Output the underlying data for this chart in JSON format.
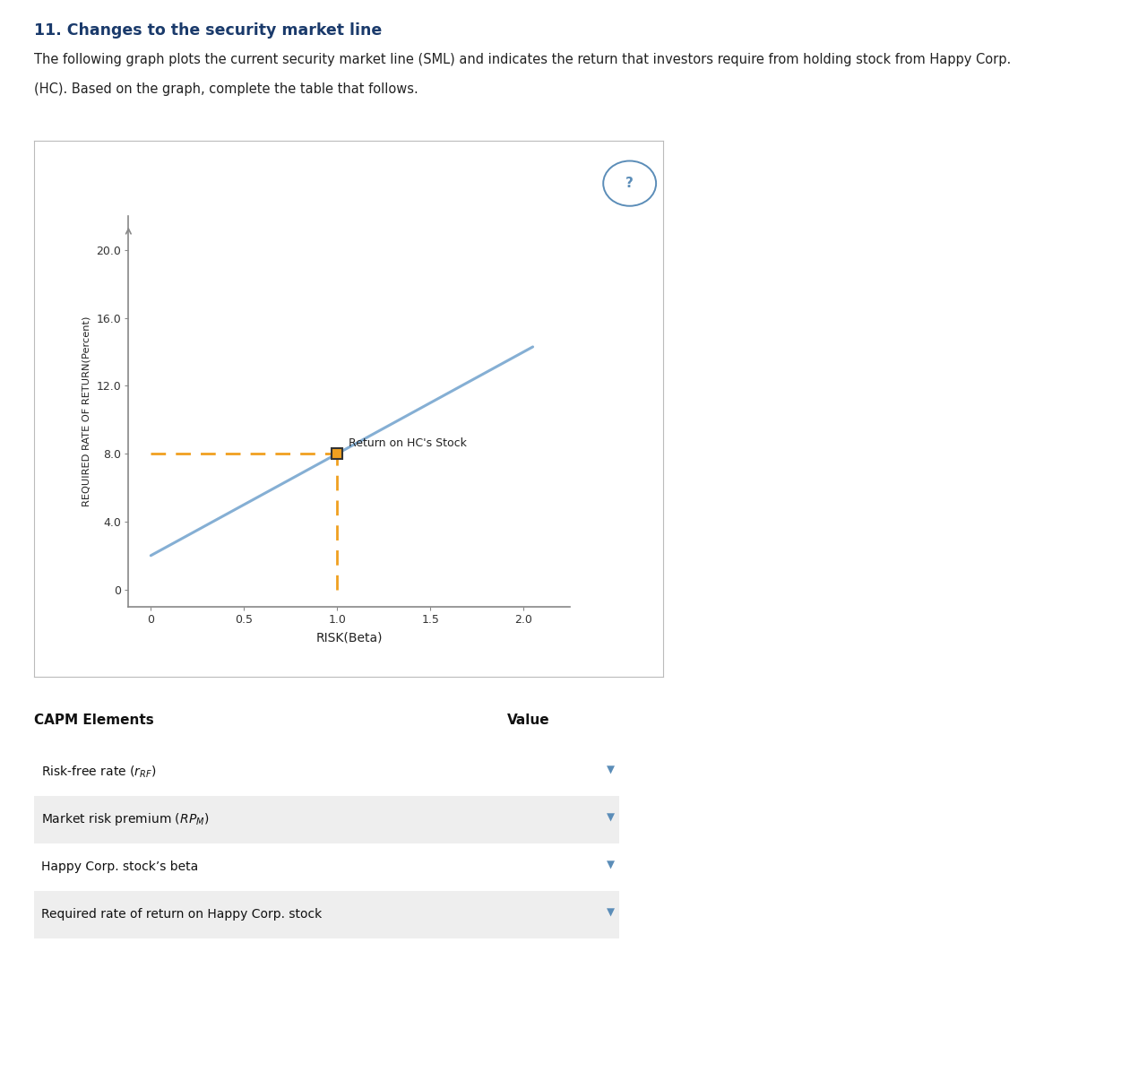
{
  "title": "11. Changes to the security market line",
  "title_color": "#1a3a6b",
  "description_line1": "The following graph plots the current security market line (SML) and indicates the return that investors require from holding stock from Happy Corp.",
  "description_line2": "(HC). Based on the graph, complete the table that follows.",
  "page_bg": "#ffffff",
  "border_color_gold": "#c9b96a",
  "chart_bg": "#ffffff",
  "chart_outer_bg": "#f8f8f8",
  "chart_border_color": "#bbbbbb",
  "sml_color": "#85afd4",
  "sml_y_intercept": 2.0,
  "sml_slope": 6.0,
  "sml_x_end": 2.05,
  "dashed_color": "#f0a020",
  "hc_beta": 1.0,
  "hc_return": 8.0,
  "annotation_text": "Return on HC's Stock",
  "xlabel": "RISK(Beta)",
  "ylabel": "REQUIRED RATE OF RETURN(Percent)",
  "yticks": [
    0,
    4.0,
    8.0,
    12.0,
    16.0,
    20.0
  ],
  "xticks": [
    0,
    0.5,
    1.0,
    1.5,
    2.0
  ],
  "xlim": [
    -0.12,
    2.25
  ],
  "ylim": [
    -1.0,
    22.0
  ],
  "marker_color": "#f0a020",
  "marker_edge_color": "#333333",
  "question_mark_color": "#5b8db8",
  "table_header_capm": "CAPM Elements",
  "table_header_value": "Value",
  "table_row_labels": [
    "Risk-free rate ($r_{RF}$)",
    "Market risk premium ($RP_M$)",
    "Happy Corp. stock’s beta",
    "Required rate of return on Happy Corp. stock"
  ],
  "table_row_bg": [
    "#ffffff",
    "#eeeeee",
    "#ffffff",
    "#eeeeee"
  ],
  "dropdown_color": "#5b8db8",
  "axis_color": "#888888",
  "tick_color": "#555555"
}
